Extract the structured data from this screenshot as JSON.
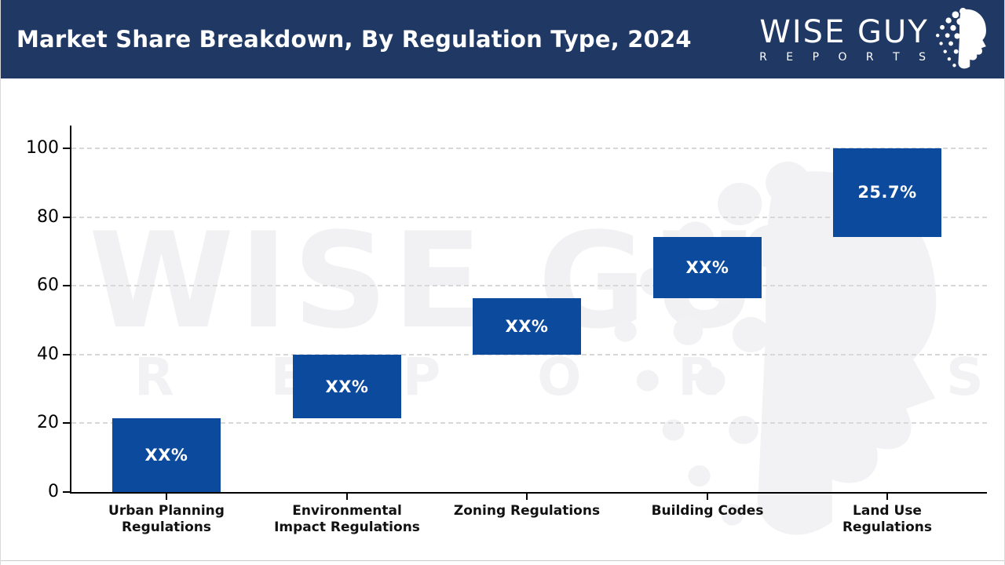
{
  "header": {
    "title": "Market Share Breakdown, By Regulation Type, 2024",
    "logo": {
      "line1": "WISE GUY",
      "line2": "R E P O R T S"
    },
    "bg_color": "#1f3864"
  },
  "watermark": {
    "line1": "WISE GUY",
    "line2": "R E P O R T S"
  },
  "chart_data": {
    "type": "bar",
    "subtype": "waterfall",
    "title": "Market Share Breakdown, By Regulation Type, 2024",
    "xlabel": "",
    "ylabel": "",
    "ylim": [
      0,
      106
    ],
    "yticks": [
      0,
      20,
      40,
      60,
      80,
      100
    ],
    "grid": "dashed horizontal",
    "bar_color": "#0c4a9e",
    "categories": [
      "Urban Planning Regulations",
      "Environmental Impact Regulations",
      "Zoning Regulations",
      "Building Codes",
      "Land Use Regulations"
    ],
    "category_lines": [
      [
        "Urban Planning",
        "Regulations"
      ],
      [
        "Environmental",
        "Impact Regulations"
      ],
      [
        "Zoning Regulations"
      ],
      [
        "Building Codes"
      ],
      [
        "Land Use",
        "Regulations"
      ]
    ],
    "segments": [
      {
        "category": "Urban Planning Regulations",
        "start": 0,
        "end": 21.4,
        "label": "XX%"
      },
      {
        "category": "Environmental Impact Regulations",
        "start": 21.4,
        "end": 40.0,
        "label": "XX%"
      },
      {
        "category": "Zoning Regulations",
        "start": 40.0,
        "end": 56.4,
        "label": "XX%"
      },
      {
        "category": "Building Codes",
        "start": 56.4,
        "end": 74.3,
        "label": "XX%"
      },
      {
        "category": "Land Use Regulations",
        "start": 74.3,
        "end": 100,
        "label": "25.7%"
      }
    ]
  }
}
